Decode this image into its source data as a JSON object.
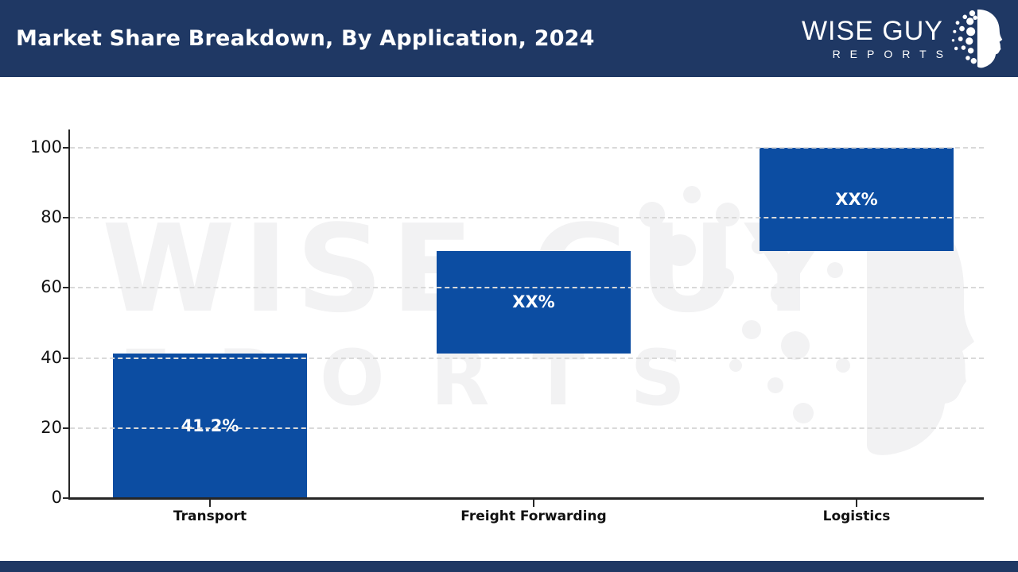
{
  "header": {
    "title": "Market Share Breakdown, By Application, 2024",
    "logo": {
      "line1": "WISE GUY",
      "line2": "REPORTS"
    }
  },
  "watermark": {
    "line1": "WISE GUY",
    "line2": "EPORTS"
  },
  "colors": {
    "navy": "#1F3864",
    "bar_blue": "#0C4DA2",
    "grid_gray": "#D9D9D9",
    "axis_dark": "#262626",
    "value_label_white": "#FFFFFF",
    "watermark_gray": "#F2F2F3"
  },
  "chart_data": {
    "type": "bar",
    "subtype": "waterfall",
    "title": "Market Share Breakdown, By Application, 2024",
    "categories": [
      "Transport",
      "Freight Forwarding",
      "Logistics"
    ],
    "segments": [
      {
        "category": "Transport",
        "start": 0,
        "end": 41.2,
        "label": "41.2%"
      },
      {
        "category": "Freight Forwarding",
        "start": 41.2,
        "end": 70.6,
        "label": "XX%"
      },
      {
        "category": "Logistics",
        "start": 70.6,
        "end": 100,
        "label": "XX%"
      }
    ],
    "xlabel": "",
    "ylabel": "",
    "ylim": [
      0,
      100
    ],
    "yticks": [
      0,
      20,
      40,
      60,
      80,
      100
    ],
    "grid": "horizontal-dashed",
    "grid_above_bars": true,
    "legend": "none"
  }
}
